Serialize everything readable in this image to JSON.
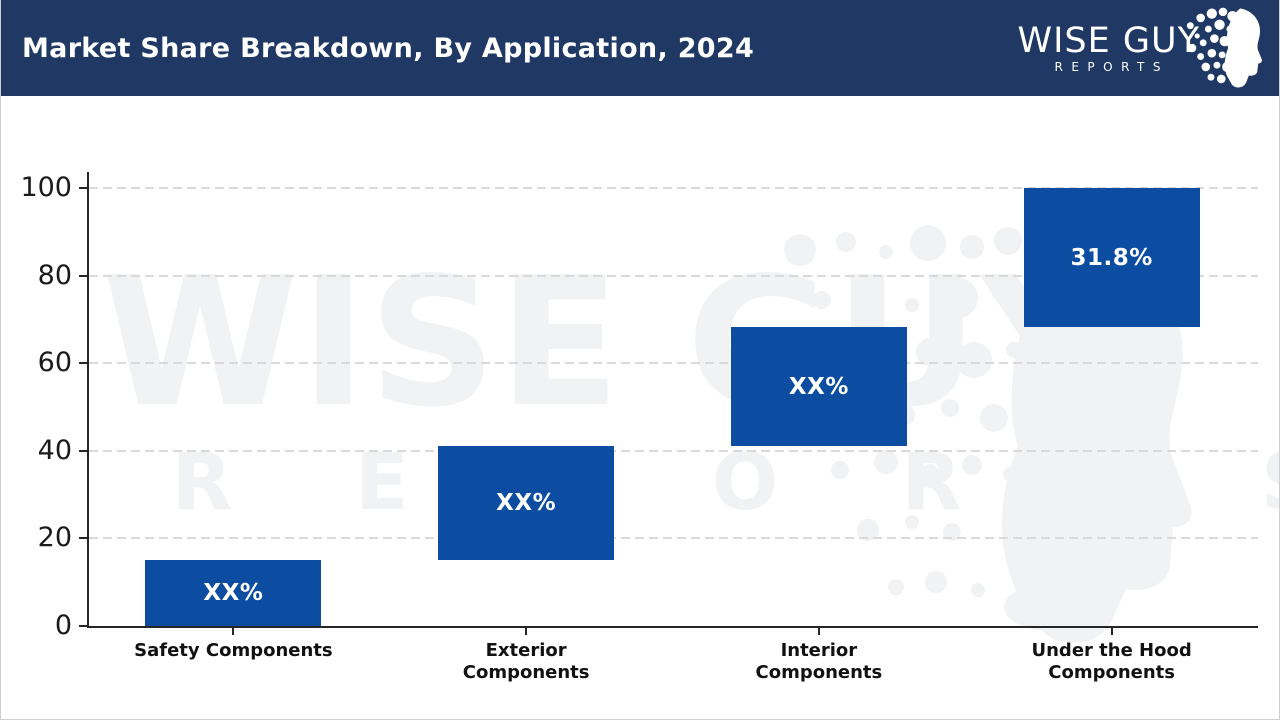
{
  "header": {
    "title": "Market Share Breakdown, By Application, 2024",
    "logo": {
      "line1": "WISE GUY",
      "line2": "REPORTS"
    }
  },
  "watermark": {
    "line1": "WISE GUY",
    "line2": "R E P O R T S"
  },
  "chart_data": {
    "type": "bar",
    "variant": "floating waterfall-style segments",
    "title": "Market Share Breakdown, By Application, 2024",
    "categories": [
      "Safety Components",
      "Exterior Components",
      "Interior Components",
      "Under the Hood Components"
    ],
    "segments": [
      {
        "category": "Safety Components",
        "category_lines": [
          "Safety Components"
        ],
        "from": 0,
        "to": 15,
        "value_label": "XX%"
      },
      {
        "category": "Exterior Components",
        "category_lines": [
          "Exterior",
          "Components"
        ],
        "from": 15,
        "to": 41,
        "value_label": "XX%"
      },
      {
        "category": "Interior Components",
        "category_lines": [
          "Interior",
          "Components"
        ],
        "from": 41,
        "to": 68.2,
        "value_label": "XX%"
      },
      {
        "category": "Under the Hood Components",
        "category_lines": [
          "Under the Hood",
          "Components"
        ],
        "from": 68.2,
        "to": 100,
        "value_label": "31.8%"
      }
    ],
    "ylim": [
      0,
      100
    ],
    "yticks": [
      0,
      20,
      40,
      60,
      80,
      100
    ],
    "xlabel": "",
    "ylabel": "",
    "grid": "horizontal dashed",
    "legend": "none",
    "bar_color": "#0c4da2",
    "value_label_color": "#ffffff"
  },
  "colors": {
    "header_bg": "#1f3864",
    "bar_blue": "#0c4da2",
    "grid_line": "#d9d9d9",
    "axis_line": "#262626",
    "watermark": "#f1f2f4",
    "tick_text": "#1a1a1a",
    "page_border": "#cfcfcf"
  }
}
